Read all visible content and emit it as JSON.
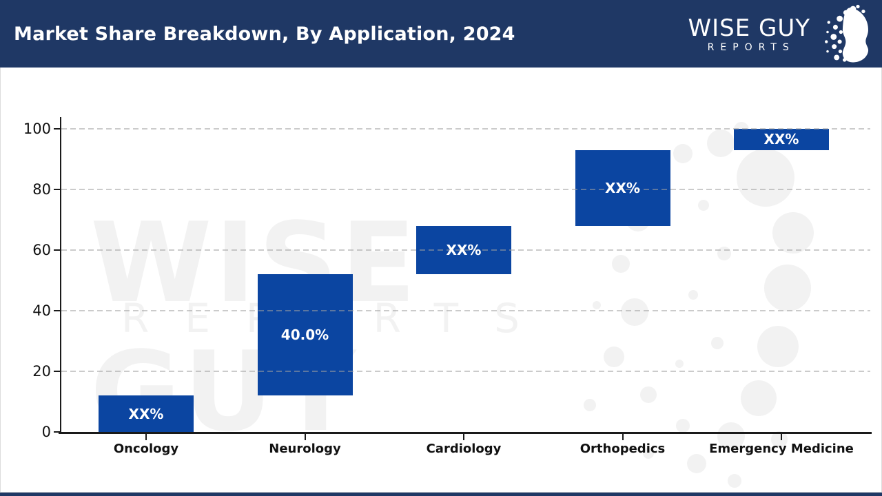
{
  "header": {
    "title": "Market Share Breakdown, By Application, 2024",
    "bg_color": "#1f3865",
    "logo": {
      "name": "WISE GUY",
      "subname": "REPORTS"
    }
  },
  "watermark": {
    "line1": "WISE GUY",
    "line2": "REPORTS"
  },
  "chart_data": {
    "type": "bar",
    "subtype": "floating-waterfall",
    "title": "Market Share Breakdown, By Application, 2024",
    "categories": [
      "Oncology",
      "Neurology",
      "Cardiology",
      "Orthopedics",
      "Emergency Medicine"
    ],
    "segments": [
      {
        "category": "Oncology",
        "start": 0,
        "end": 12,
        "value": 12,
        "value_label": "XX%"
      },
      {
        "category": "Neurology",
        "start": 12,
        "end": 52,
        "value": 40,
        "value_label": "40.0%"
      },
      {
        "category": "Cardiology",
        "start": 52,
        "end": 68,
        "value": 16,
        "value_label": "XX%"
      },
      {
        "category": "Orthopedics",
        "start": 68,
        "end": 93,
        "value": 25,
        "value_label": "XX%"
      },
      {
        "category": "Emergency Medicine",
        "start": 93,
        "end": 100,
        "value": 7,
        "value_label": "XX%"
      }
    ],
    "yticks": [
      0,
      20,
      40,
      60,
      80,
      100
    ],
    "ylim": [
      0,
      104
    ],
    "xlabel": "",
    "ylabel": "",
    "bar_color": "#0b45a1",
    "bar_label_color": "#ffffff",
    "grid": "horizontal-dashed-over-bars",
    "legend": "none"
  }
}
